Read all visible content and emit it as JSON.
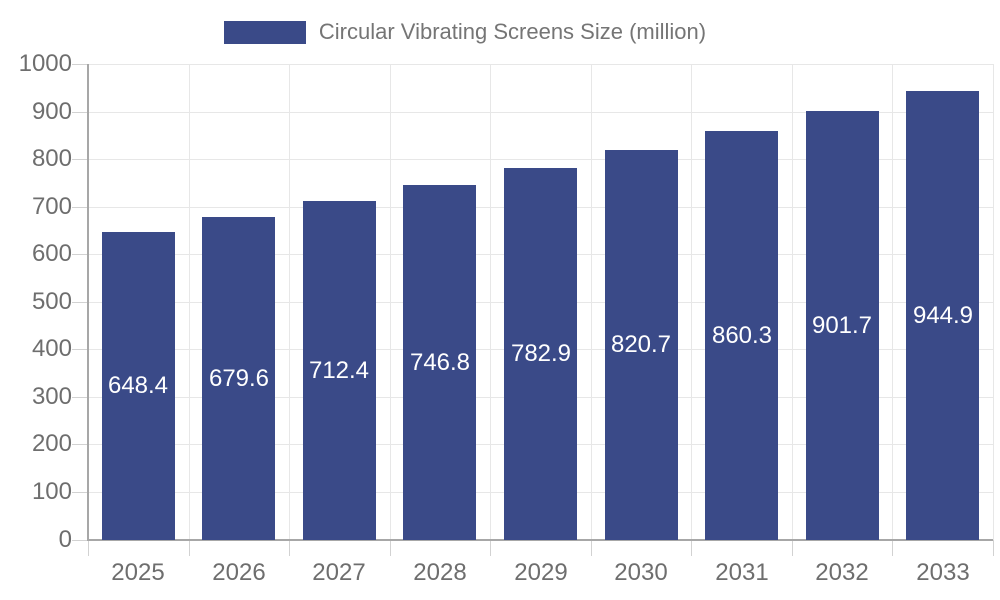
{
  "chart_data": {
    "type": "bar",
    "title": "Circular Vibrating Screens Size (million)",
    "legend_position": "top-center",
    "categories": [
      "2025",
      "2026",
      "2027",
      "2028",
      "2029",
      "2030",
      "2031",
      "2032",
      "2033"
    ],
    "values": [
      648.4,
      679.6,
      712.4,
      746.8,
      782.9,
      820.7,
      860.3,
      901.7,
      944.9
    ],
    "value_labels": [
      "648.4",
      "679.6",
      "712.4",
      "746.8",
      "782.9",
      "820.7",
      "860.3",
      "901.7",
      "944.9"
    ],
    "xlabel": "",
    "ylabel": "",
    "ylim": [
      0,
      1000
    ],
    "ytick_step": 100,
    "ytick_labels": [
      "0",
      "100",
      "200",
      "300",
      "400",
      "500",
      "600",
      "700",
      "800",
      "900",
      "1000"
    ],
    "grid": true,
    "colors": {
      "bar": "#3a4a88",
      "value_label": "#ffffff",
      "axis_text": "#6e6e6e",
      "legend_text": "#757575",
      "gridline": "#e7e7e7",
      "axis_line": "#a7a7a7",
      "tick": "#d2d2d2"
    }
  }
}
